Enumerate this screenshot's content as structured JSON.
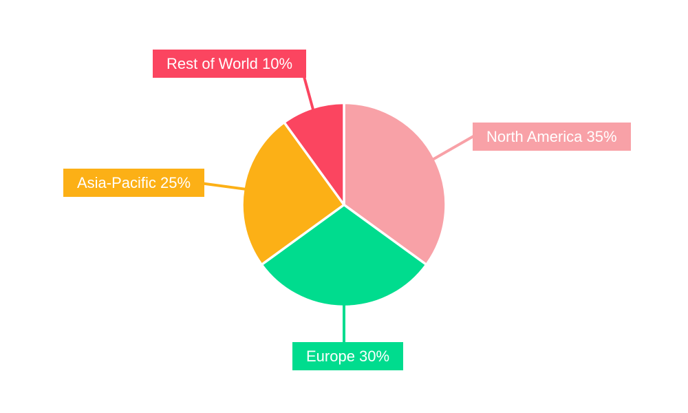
{
  "chart_data": {
    "type": "pie",
    "title": "",
    "legend": "none",
    "background": "#FFFFFF",
    "label_text_color": "#FFFFFF",
    "start_angle_deg": 0,
    "direction": "clockwise",
    "categories": [
      "North America",
      "Europe",
      "Asia-Pacific",
      "Rest of World"
    ],
    "values": [
      35,
      30,
      25,
      10
    ],
    "unit": "%",
    "slices": [
      {
        "name": "North America",
        "value": 35,
        "label": "North America 35%",
        "color": "#F8A1A7"
      },
      {
        "name": "Europe",
        "value": 30,
        "label": "Europe 30%",
        "color": "#00DC8E"
      },
      {
        "name": "Asia-Pacific",
        "value": 25,
        "label": "Asia-Pacific 25%",
        "color": "#FCB016"
      },
      {
        "name": "Rest of World",
        "value": 10,
        "label": "Rest of World 10%",
        "color": "#FB4560"
      }
    ]
  }
}
